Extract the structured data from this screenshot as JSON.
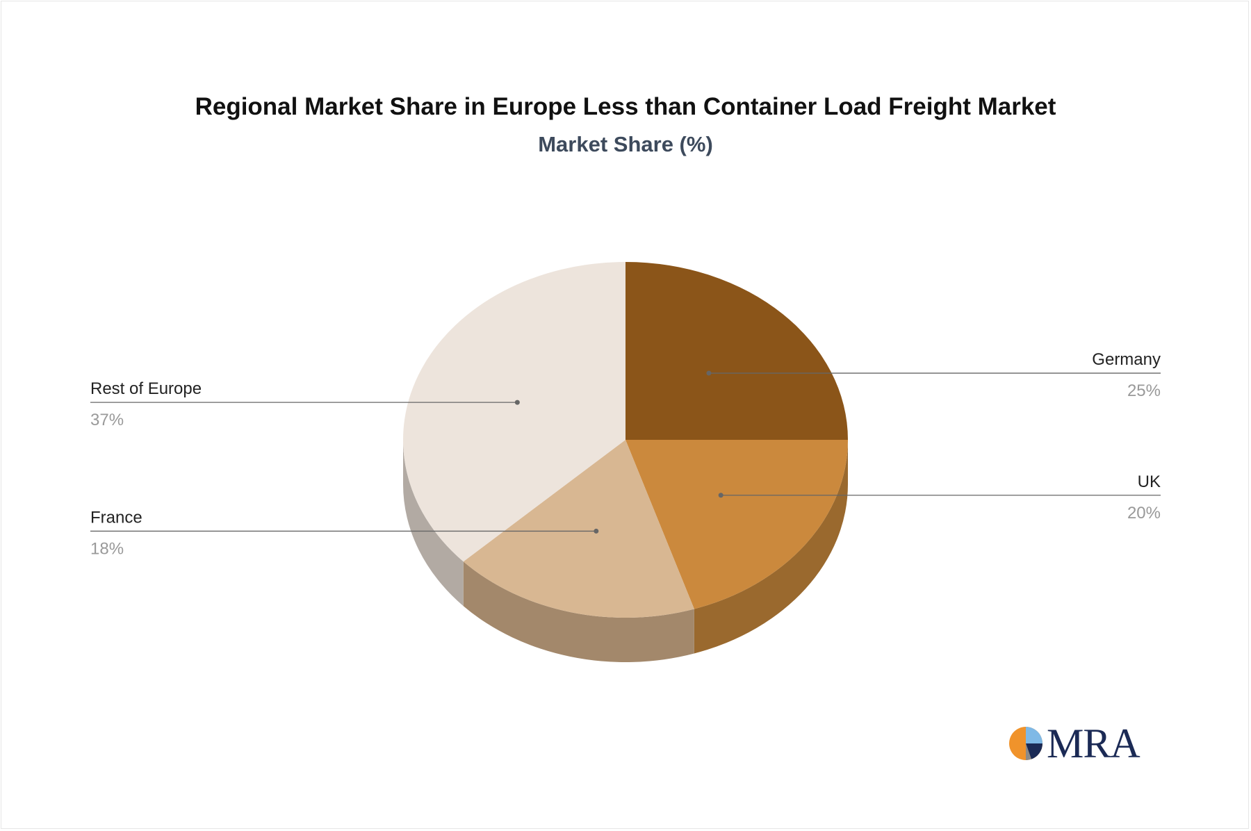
{
  "chart_data": {
    "type": "pie",
    "title": "Regional Market Share in Europe Less than Container Load Freight Market",
    "subtitle": "Market Share (%)",
    "slices": [
      {
        "label": "Germany",
        "value": 25,
        "value_label": "25%",
        "color": "#8b5519",
        "side_color": "#6b3f12"
      },
      {
        "label": "UK",
        "value": 20,
        "value_label": "20%",
        "color": "#cb893d",
        "side_color": "#9a692e"
      },
      {
        "label": "France",
        "value": 18,
        "value_label": "18%",
        "color": "#d8b792",
        "side_color": "#a3886b"
      },
      {
        "label": "Rest of Europe",
        "value": 37,
        "value_label": "37%",
        "color": "#ede4dc",
        "side_color": "#b2aaa3"
      }
    ],
    "label_color": "#222222",
    "value_color": "#999999",
    "leader_color": "#666666"
  },
  "logo": {
    "text": "MRA",
    "icon": "mra-pie-logo-icon"
  }
}
